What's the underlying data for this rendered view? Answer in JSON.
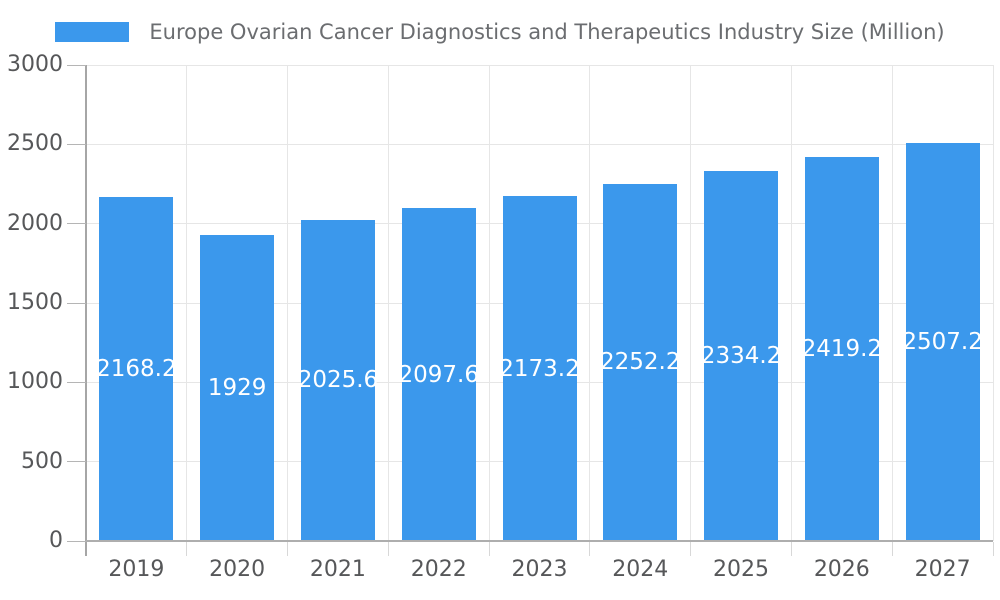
{
  "legend": {
    "label": "Europe Ovarian Cancer Diagnostics and Therapeutics Industry Size (Million)",
    "swatch_color": "#3b98ec"
  },
  "chart_data": {
    "type": "bar",
    "title": "Europe Ovarian Cancer Diagnostics and Therapeutics Industry Size (Million)",
    "series_name": "Europe Ovarian Cancer Diagnostics and Therapeutics Industry Size (Million)",
    "categories": [
      "2019",
      "2020",
      "2021",
      "2022",
      "2023",
      "2024",
      "2025",
      "2026",
      "2027"
    ],
    "values": [
      2168.2,
      1929,
      2025.6,
      2097.6,
      2173.2,
      2252.2,
      2334.2,
      2419.2,
      2507.2
    ],
    "value_labels": [
      "2168.2",
      "1929",
      "2025.6",
      "2097.6",
      "2173.2",
      "2252.2",
      "2334.2",
      "2419.2",
      "2507.2"
    ],
    "xlabel": "",
    "ylabel": "",
    "ylim": [
      0,
      3000
    ],
    "yticks": [
      0,
      500,
      1000,
      1500,
      2000,
      2500,
      3000
    ],
    "grid": true,
    "legend_position": "top",
    "bar_color": "#3b98ec",
    "value_label_color": "#ffffff",
    "axis_label_color": "#565759",
    "grid_color": "#e6e6e6"
  }
}
